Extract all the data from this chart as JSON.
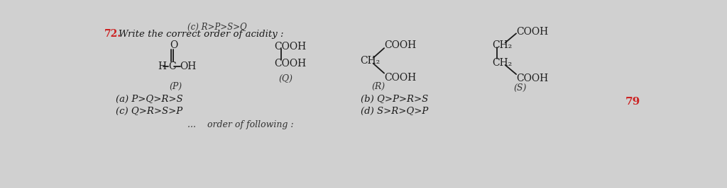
{
  "background_color": "#d0d0d0",
  "text_color": "#1a1a1a",
  "red_color": "#cc2222",
  "dark_color": "#333333",
  "prev_line": "(c) R>P>S>Q",
  "q_number": "72.",
  "q_text": "Write the correct order of acidity :",
  "label_P": "(P)",
  "label_Q": "(Q)",
  "label_R": "(R)",
  "label_S": "(S)",
  "opt_a": "(a) P>Q>R>S",
  "opt_b": "(b) Q>P>R>S",
  "opt_c": "(c) Q>R>S>P",
  "opt_d": "(d) S>R>Q>P",
  "page": "79",
  "bottom_text": "order of following :"
}
